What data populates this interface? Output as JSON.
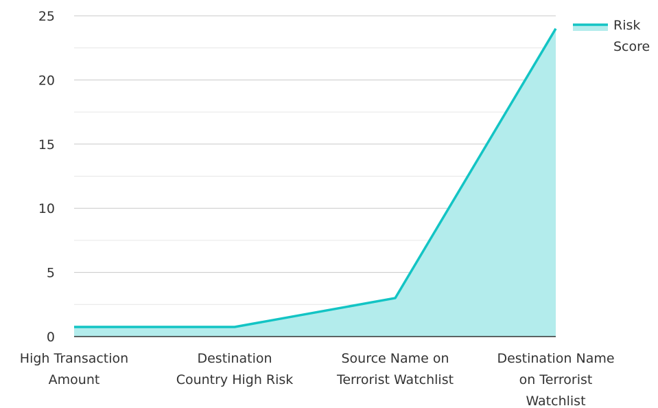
{
  "chart_data": {
    "type": "area",
    "categories": [
      "High Transaction Amount",
      "Destination Country High Risk",
      "Source Name on Terrorist Watchlist",
      "Destination Name on Terrorist Watchlist"
    ],
    "category_lines": [
      [
        "High Transaction",
        "Amount"
      ],
      [
        "Destination",
        "Country High Risk"
      ],
      [
        "Source Name on",
        "Terrorist Watchlist"
      ],
      [
        "Destination Name",
        "on Terrorist",
        "Watchlist"
      ]
    ],
    "series": [
      {
        "name": "Risk Score",
        "values": [
          0.75,
          0.75,
          3,
          24
        ]
      }
    ],
    "legend_lines": [
      "Risk",
      "Score"
    ],
    "ylim": [
      0,
      25
    ],
    "yticks": [
      0,
      5,
      10,
      15,
      20,
      25
    ],
    "grid": true,
    "legend_position": "top-right",
    "colors": {
      "line": "#13c4c4",
      "fill": "#b3ecec",
      "grid": "#c8c8c8",
      "minor_grid": "#e6e6e6",
      "axis": "#333333"
    }
  }
}
